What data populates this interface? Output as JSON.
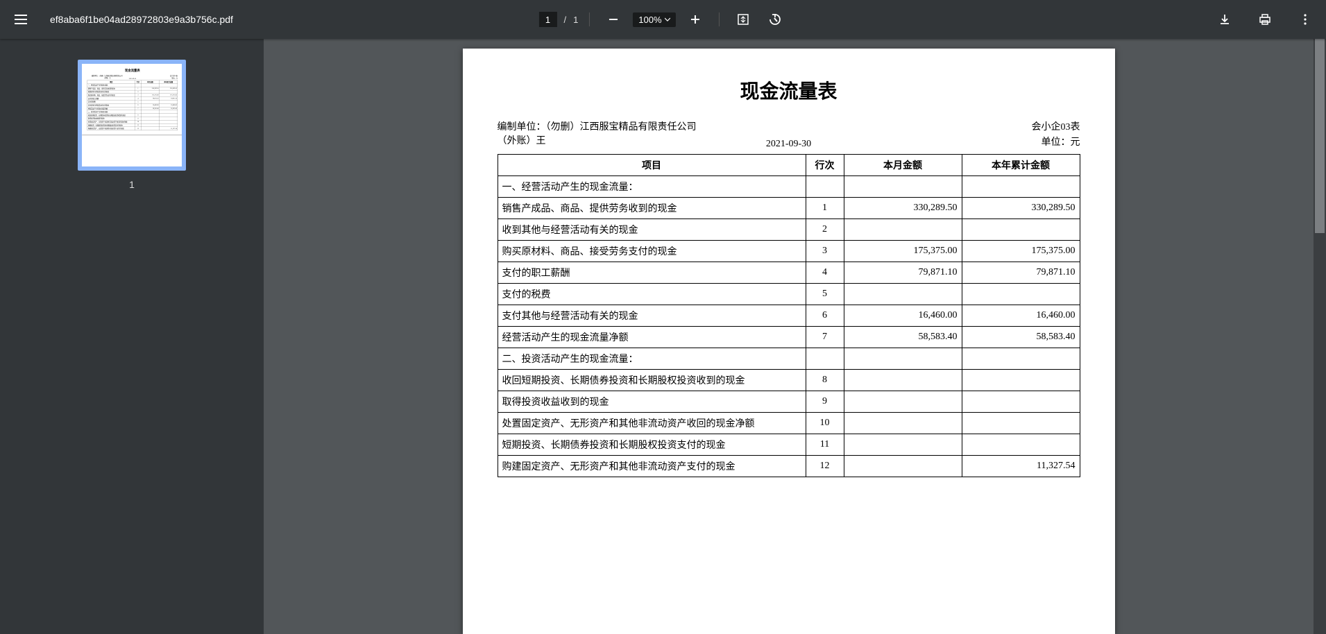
{
  "toolbar": {
    "filename": "ef8aba6f1be04ad28972803e9a3b756c.pdf",
    "current_page": "1",
    "page_sep": "/",
    "total_pages": "1",
    "zoom_level": "100%"
  },
  "sidebar": {
    "thumb_label": "1"
  },
  "document": {
    "title": "现金流量表",
    "header": {
      "left_line1": "编制单位：（勿删）江西服宝精品有限责任公司",
      "left_line2": "（外账）王",
      "center_date": "2021-09-30",
      "right_line1": "会小企03表",
      "right_line2": "单位：元"
    },
    "table": {
      "columns": [
        "项目",
        "行次",
        "本月金额",
        "本年累计金额"
      ],
      "col_widths": [
        "auto",
        "55px",
        "170px",
        "170px"
      ],
      "border_color": "#000000",
      "header_bg": "#ffffff",
      "font_size": 14,
      "rows": [
        {
          "item": "一、经营活动产生的现金流量：",
          "line": "",
          "month": "",
          "year": ""
        },
        {
          "item": "销售产成品、商品、提供劳务收到的现金",
          "line": "1",
          "month": "330,289.50",
          "year": "330,289.50"
        },
        {
          "item": "收到其他与经营活动有关的现金",
          "line": "2",
          "month": "",
          "year": ""
        },
        {
          "item": "购买原材料、商品、接受劳务支付的现金",
          "line": "3",
          "month": "175,375.00",
          "year": "175,375.00"
        },
        {
          "item": "支付的职工薪酬",
          "line": "4",
          "month": "79,871.10",
          "year": "79,871.10"
        },
        {
          "item": "支付的税费",
          "line": "5",
          "month": "",
          "year": ""
        },
        {
          "item": "支付其他与经营活动有关的现金",
          "line": "6",
          "month": "16,460.00",
          "year": "16,460.00"
        },
        {
          "item": "经营活动产生的现金流量净额",
          "line": "7",
          "month": "58,583.40",
          "year": "58,583.40"
        },
        {
          "item": "二、投资活动产生的现金流量：",
          "line": "",
          "month": "",
          "year": ""
        },
        {
          "item": "收回短期投资、长期债券投资和长期股权投资收到的现金",
          "line": "8",
          "month": "",
          "year": ""
        },
        {
          "item": "取得投资收益收到的现金",
          "line": "9",
          "month": "",
          "year": ""
        },
        {
          "item": "处置固定资产、无形资产和其他非流动资产收回的现金净额",
          "line": "10",
          "month": "",
          "year": ""
        },
        {
          "item": "短期投资、长期债券投资和长期股权投资支付的现金",
          "line": "11",
          "month": "",
          "year": ""
        },
        {
          "item": "购建固定资产、无形资产和其他非流动资产支付的现金",
          "line": "12",
          "month": "",
          "year": "11,327.54"
        }
      ]
    }
  },
  "colors": {
    "toolbar_bg": "#323639",
    "viewer_bg": "#525659",
    "page_bg": "#ffffff",
    "thumb_border": "#8ab4f8",
    "input_bg": "#191b1c",
    "scrollbar_thumb": "#7c7f82"
  }
}
